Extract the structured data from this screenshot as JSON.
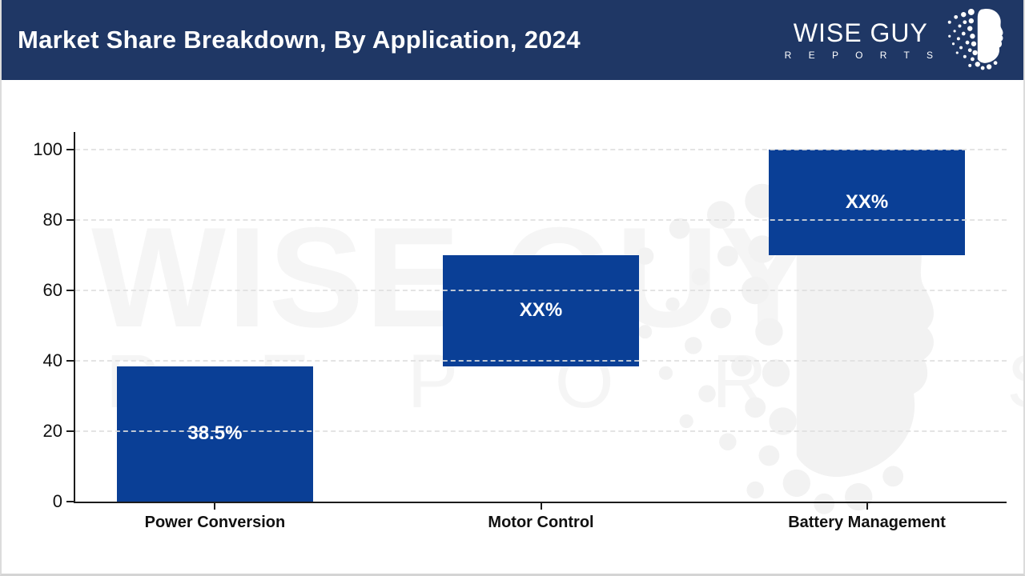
{
  "header": {
    "title": "Market Share Breakdown, By Application, 2024",
    "logo": {
      "wordmark": "WISE GUY",
      "subtext": "R E P O R T S",
      "icon": "dotted-head-profile"
    }
  },
  "watermark": {
    "wordmark": "WISE GUY",
    "subtext": "R E P O R T S",
    "icon": "dotted-head-profile"
  },
  "colors": {
    "header_bg": "#1f3765",
    "bar_fill": "#0a3f96",
    "bar_label": "#ffffff",
    "gridline": "#e2e2e2",
    "axis": "#1c1c1c",
    "watermark": "#f5f5f5"
  },
  "chart_data": {
    "type": "bar",
    "subtype": "waterfall-stacked",
    "title": "Market Share Breakdown, By Application, 2024",
    "categories": [
      "Power Conversion",
      "Motor Control",
      "Battery Management"
    ],
    "bars": [
      {
        "category": "Power Conversion",
        "start": 0,
        "end": 38.5,
        "value_label": "38.5%"
      },
      {
        "category": "Motor Control",
        "start": 38.5,
        "end": 70,
        "value_label": "XX%"
      },
      {
        "category": "Battery Management",
        "start": 70,
        "end": 100,
        "value_label": "XX%"
      }
    ],
    "xlabel": "",
    "ylabel": "",
    "yticks": [
      0,
      20,
      40,
      60,
      80,
      100
    ],
    "ylim": [
      0,
      105
    ],
    "grid": "horizontal-dashed",
    "legend": "none"
  }
}
